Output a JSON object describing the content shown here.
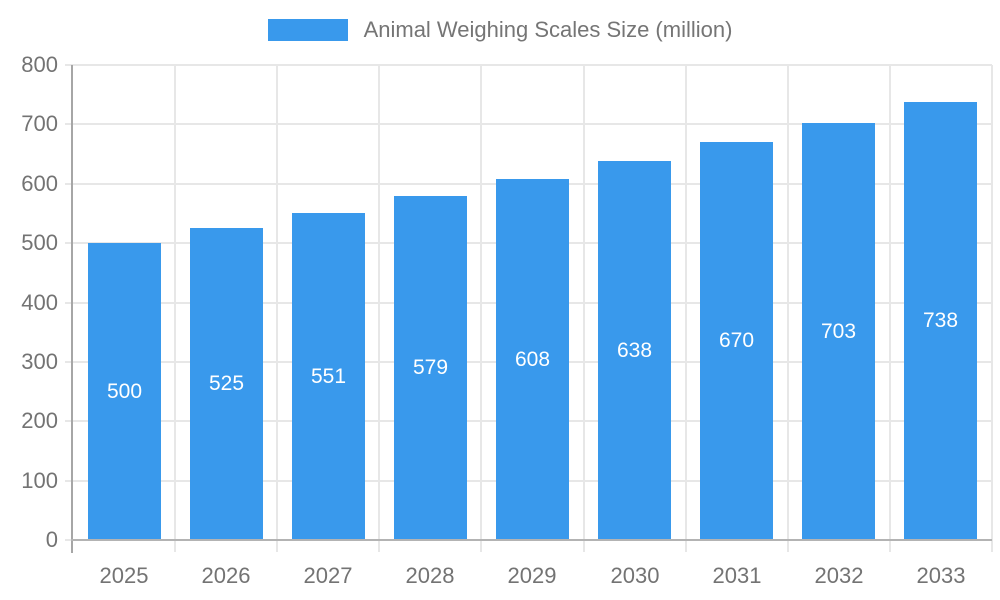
{
  "legend": {
    "label": "Animal Weighing Scales Size (million)"
  },
  "chart_data": {
    "type": "bar",
    "title": "Animal Weighing Scales Size (million)",
    "categories": [
      "2025",
      "2026",
      "2027",
      "2028",
      "2029",
      "2030",
      "2031",
      "2032",
      "2033"
    ],
    "values": [
      500,
      525,
      551,
      579,
      608,
      638,
      670,
      703,
      738
    ],
    "xlabel": "",
    "ylabel": "",
    "ylim": [
      0,
      800
    ],
    "y_ticks": [
      0,
      100,
      200,
      300,
      400,
      500,
      600,
      700,
      800
    ],
    "grid": true,
    "legend_position": "top",
    "bar_labels_inside": true,
    "colors": {
      "bar": "#3999ec",
      "grid": "#e7e7e7",
      "axis": "#a6a6a6",
      "baseline": "#b3b3b3",
      "tick_text": "#737373",
      "bar_label_text": "#ffffff",
      "background": "#ffffff"
    }
  }
}
